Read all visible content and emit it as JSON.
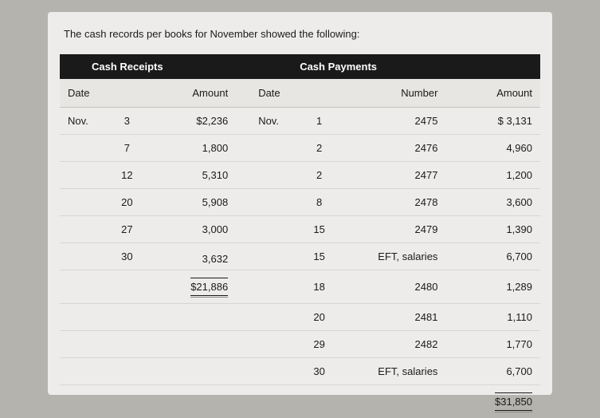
{
  "intro": "The cash records per books for November showed the following:",
  "headers": {
    "receipts": "Cash Receipts",
    "payments": "Cash Payments"
  },
  "subheaders": {
    "date_r": "Date",
    "amount_r": "Amount",
    "date_p": "Date",
    "number_p": "Number",
    "amount_p": "Amount"
  },
  "month": "Nov.",
  "rows": [
    {
      "r_day": "3",
      "r_amount": "$2,236",
      "p_month": "Nov.",
      "p_day": "1",
      "p_number": "2475",
      "p_amount": "$ 3,131"
    },
    {
      "r_day": "7",
      "r_amount": "1,800",
      "p_month": "",
      "p_day": "2",
      "p_number": "2476",
      "p_amount": "4,960"
    },
    {
      "r_day": "12",
      "r_amount": "5,310",
      "p_month": "",
      "p_day": "2",
      "p_number": "2477",
      "p_amount": "1,200"
    },
    {
      "r_day": "20",
      "r_amount": "5,908",
      "p_month": "",
      "p_day": "8",
      "p_number": "2478",
      "p_amount": "3,600"
    },
    {
      "r_day": "27",
      "r_amount": "3,000",
      "p_month": "",
      "p_day": "15",
      "p_number": "2479",
      "p_amount": "1,390"
    },
    {
      "r_day": "30",
      "r_amount": "3,632",
      "p_month": "",
      "p_day": "15",
      "p_number": "EFT, salaries",
      "p_amount": "6,700"
    },
    {
      "r_day": "",
      "r_amount": "$21,886",
      "p_month": "",
      "p_day": "18",
      "p_number": "2480",
      "p_amount": "1,289",
      "r_total": true
    },
    {
      "r_day": "",
      "r_amount": "",
      "p_month": "",
      "p_day": "20",
      "p_number": "2481",
      "p_amount": "1,110"
    },
    {
      "r_day": "",
      "r_amount": "",
      "p_month": "",
      "p_day": "29",
      "p_number": "2482",
      "p_amount": "1,770"
    },
    {
      "r_day": "",
      "r_amount": "",
      "p_month": "",
      "p_day": "30",
      "p_number": "EFT, salaries",
      "p_amount": "6,700"
    }
  ],
  "totals": {
    "payments": "$31,850"
  },
  "colors": {
    "page_bg": "#b5b3ae",
    "container_bg": "#eeeceb",
    "header_bg": "#1a1a1a",
    "header_text": "#ffffff",
    "subheader_bg": "#e8e6e3",
    "text": "#1a1a1a",
    "row_border": "#d8d6d3"
  }
}
